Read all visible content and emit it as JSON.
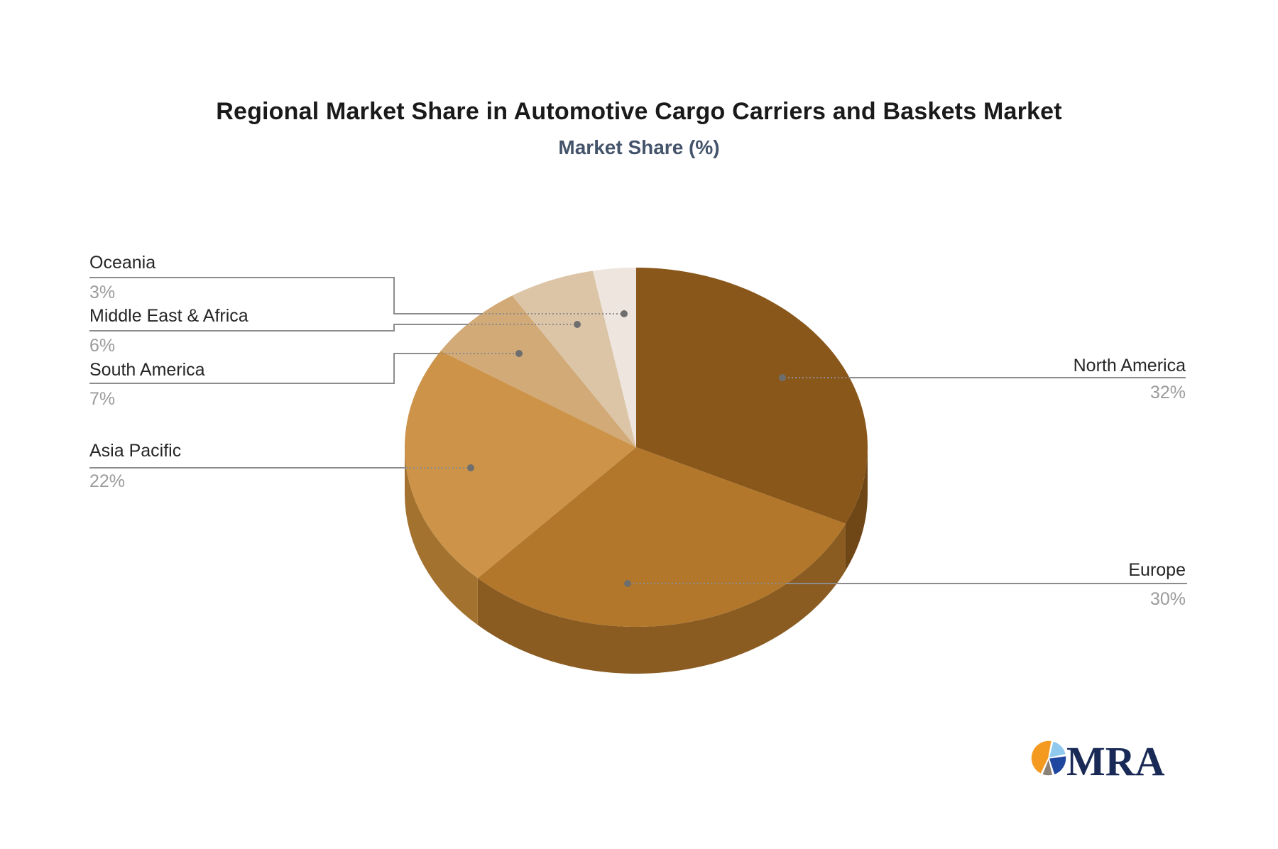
{
  "title": "Regional Market Share in Automotive Cargo Carriers and Baskets Market",
  "subtitle": "Market Share (%)",
  "chart_data": {
    "type": "pie",
    "style": "3d-pie",
    "title": "Regional Market Share in Automotive Cargo Carriers and Baskets Market",
    "subtitle": "Market Share (%)",
    "unit": "%",
    "start_angle_deg": 0,
    "direction": "clockwise",
    "legend": "none",
    "categories": [
      "North America",
      "Europe",
      "Asia Pacific",
      "South America",
      "Middle East & Africa",
      "Oceania"
    ],
    "values": [
      32,
      30,
      22,
      7,
      6,
      3
    ],
    "slices": [
      {
        "label": "North America",
        "value": 32,
        "display": "32%",
        "color": "#8A571B",
        "side_color": "#6F4616",
        "label_side": "right"
      },
      {
        "label": "Europe",
        "value": 30,
        "display": "30%",
        "color": "#B2772B",
        "side_color": "#8A5C22",
        "label_side": "right"
      },
      {
        "label": "Asia Pacific",
        "value": 22,
        "display": "22%",
        "color": "#CC9349",
        "side_color": "#A3722F",
        "label_side": "left"
      },
      {
        "label": "South America",
        "value": 7,
        "display": "7%",
        "color": "#D2AA78",
        "side_color": "#A98755",
        "label_side": "left"
      },
      {
        "label": "Middle East & Africa",
        "value": 6,
        "display": "6%",
        "color": "#DCC5A7",
        "side_color": "#B39F85",
        "label_side": "left"
      },
      {
        "label": "Oceania",
        "value": 3,
        "display": "3%",
        "color": "#EDE5DE",
        "side_color": "#C6BBB1",
        "label_side": "left"
      }
    ],
    "leader_line_color": "#8C8C8C",
    "label_name_color": "#262626",
    "label_percent_color": "#9B9B9B"
  },
  "logo": {
    "text": "MRA",
    "colors": {
      "orange": "#F49A21",
      "light_blue": "#8FC9EE",
      "navy": "#2047A0",
      "taupe": "#8C8177",
      "text": "#1A2A56"
    }
  }
}
